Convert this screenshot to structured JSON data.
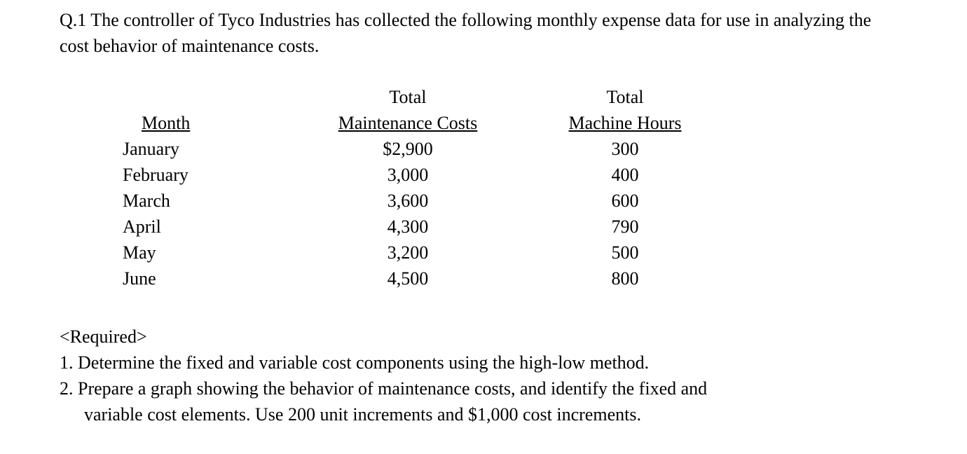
{
  "document": {
    "question": "Q.1 The controller of Tyco Industries has collected the following monthly expense data for use in analyzing the cost behavior of maintenance costs."
  },
  "table": {
    "col1_header": "Month",
    "col2_header_top": "Total",
    "col2_header": "Maintenance Costs",
    "col3_header_top": "Total",
    "col3_header": "Machine Hours",
    "rows": [
      {
        "month": "January",
        "cost": "$2,900",
        "hours": "300"
      },
      {
        "month": "February",
        "cost": "3,000",
        "hours": "400"
      },
      {
        "month": "March",
        "cost": "3,600",
        "hours": "600"
      },
      {
        "month": "April",
        "cost": "4,300",
        "hours": "790"
      },
      {
        "month": "May",
        "cost": "3,200",
        "hours": "500"
      },
      {
        "month": "June",
        "cost": "4,500",
        "hours": "800"
      }
    ]
  },
  "required": {
    "label": "<Required>",
    "item1": "1. Determine the fixed and variable cost components using the high-low method.",
    "item2_line1": "2. Prepare a graph showing the behavior of maintenance costs, and identify the fixed and",
    "item2_line2": "variable cost elements. Use 200 unit increments and $1,000 cost increments."
  }
}
